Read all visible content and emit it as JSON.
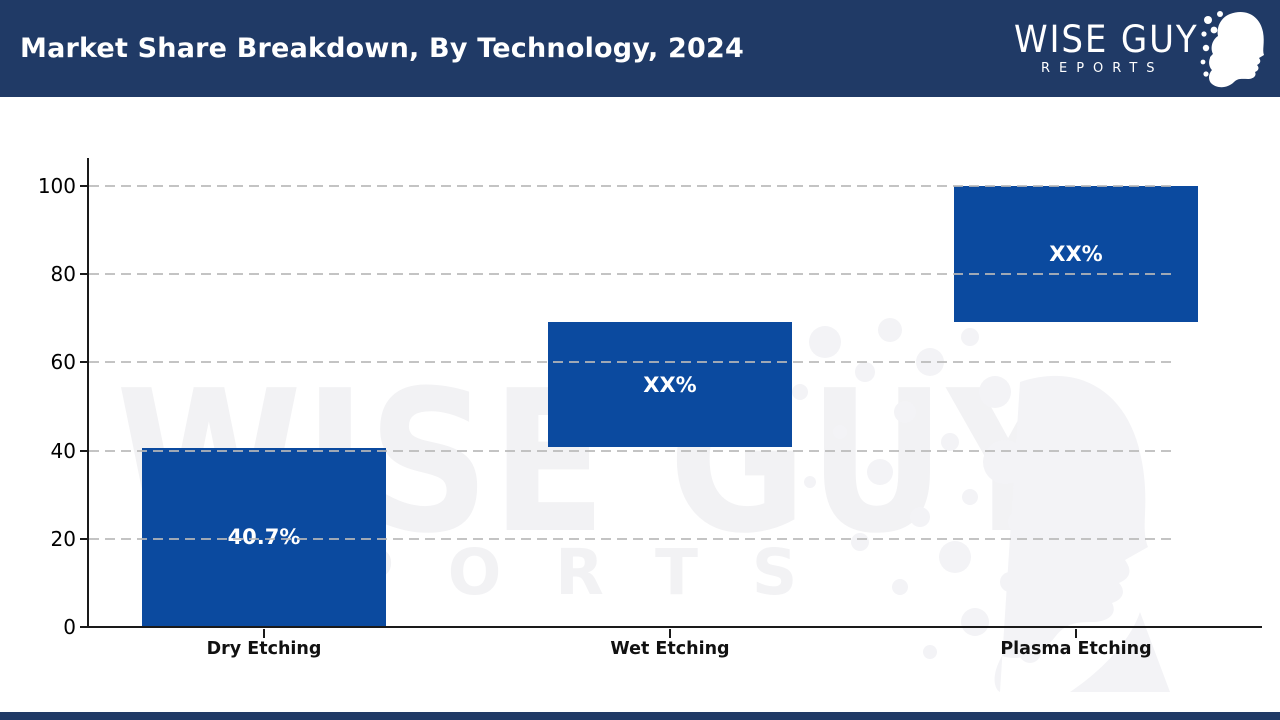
{
  "header": {
    "title": "Market Share Breakdown, By Technology, 2024",
    "bg_color": "#203a66",
    "logo": {
      "line1": "WISE GUY",
      "line2": "REPORTS"
    }
  },
  "watermark": {
    "line1": "WISE GUY",
    "line2": "REPORTS"
  },
  "footer": {
    "bg_color": "#203a66"
  },
  "chart_data": {
    "type": "bar",
    "subtype": "waterfall",
    "title": "Market Share Breakdown, By Technology, 2024",
    "categories": [
      "Dry Etching",
      "Wet Etching",
      "Plasma Etching"
    ],
    "bars": [
      {
        "category": "Dry Etching",
        "start": 0,
        "end": 40.7,
        "label": "40.7%"
      },
      {
        "category": "Wet Etching",
        "start": 40.7,
        "end": 69.2,
        "label": "XX%"
      },
      {
        "category": "Plasma Etching",
        "start": 69.2,
        "end": 100,
        "label": "XX%"
      }
    ],
    "xlabel": "",
    "ylabel": "",
    "ylim": [
      0,
      100
    ],
    "y_ticks": [
      0,
      20,
      40,
      60,
      80,
      100
    ],
    "grid": "horizontal-dashed",
    "legend": "none",
    "bar_color": "#0b4a9f",
    "label_color": "#ffffff"
  }
}
